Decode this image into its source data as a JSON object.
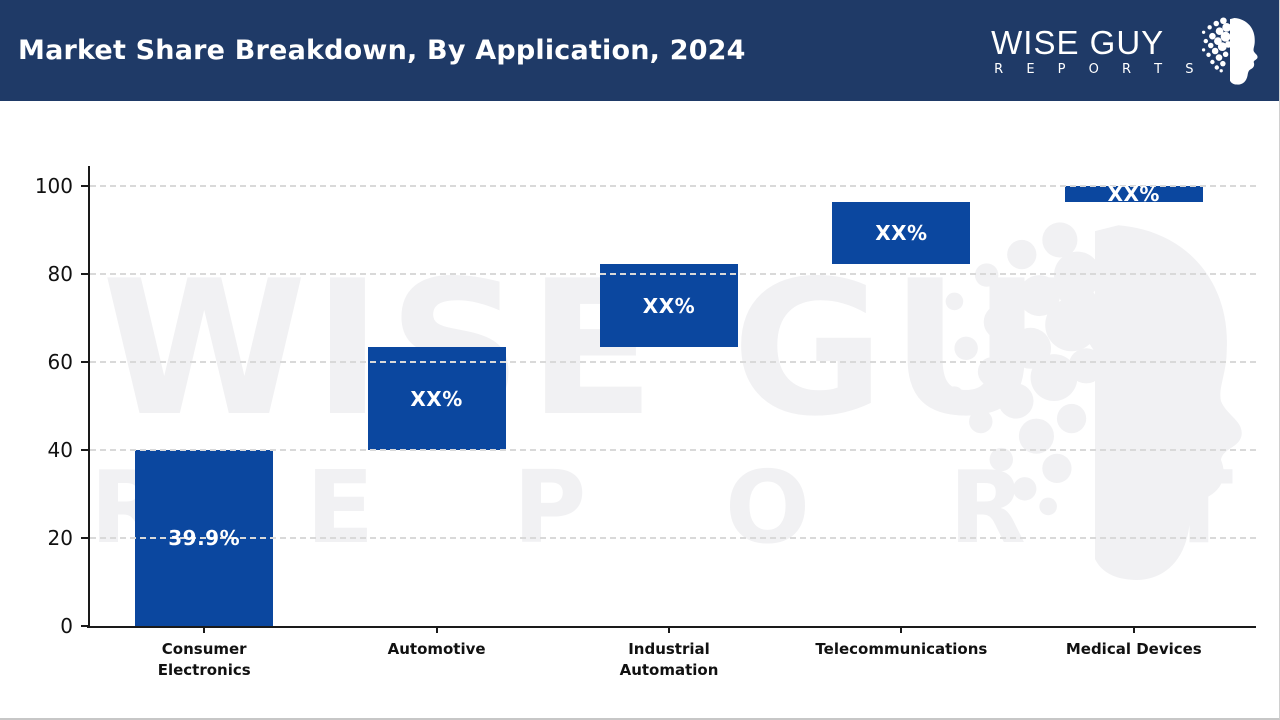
{
  "header": {
    "bg": "#1f3a67",
    "title": "Market Share Breakdown, By Application, 2024",
    "logo": {
      "line1": "WISE GUY",
      "line2": "R E P O R T S",
      "icon": "face-profile-dots-icon"
    }
  },
  "watermark": {
    "line1": "WISE GUY",
    "line2": "R E P O R T S",
    "icon": "face-profile-dots-icon"
  },
  "chart_data": {
    "type": "bar",
    "subtype": "waterfall",
    "title": "Market Share Breakdown, By Application, 2024",
    "xlabel": "",
    "ylabel": "",
    "ylim": [
      0,
      105
    ],
    "yticks": [
      0,
      20,
      40,
      60,
      80,
      100
    ],
    "grid": "dashed horizontal",
    "legend": "none",
    "bar_color": "#0b479f",
    "label_color": "#ffffff",
    "categories": [
      "Consumer Electronics",
      "Automotive",
      "Industrial Automation",
      "Telecommunications",
      "Medical Devices"
    ],
    "bars": [
      {
        "category": "Consumer Electronics",
        "start": 0,
        "end": 39.9,
        "label": "39.9%"
      },
      {
        "category": "Automotive",
        "start": 39.9,
        "end": 63.3,
        "label": "XX%"
      },
      {
        "category": "Industrial Automation",
        "start": 63.3,
        "end": 82.2,
        "label": "XX%"
      },
      {
        "category": "Telecommunications",
        "start": 82.2,
        "end": 96.4,
        "label": "XX%"
      },
      {
        "category": "Medical Devices",
        "start": 96.4,
        "end": 100,
        "label": "XX%"
      }
    ]
  }
}
